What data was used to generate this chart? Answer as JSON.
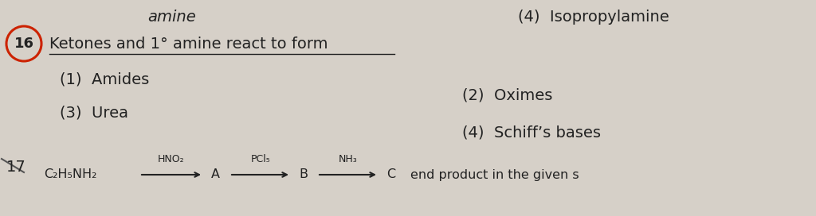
{
  "bg_color": "#d6d0c8",
  "title_num": "16.",
  "title_circle_color": "#cc2200",
  "title_text": "Ketones and 1° amine react to form",
  "top_right_text": "(4)  Isopropylamine",
  "top_right_partial": "amine",
  "opt1": "(1)  Amides",
  "opt2": "(2)  Oximes",
  "opt3": "(3)  Urea",
  "opt4": "(4)  Schiff’s bases",
  "q17_text": "C₂H₅NH₂",
  "q17_arrow1_label": "HNO₂",
  "q17_A": "A",
  "q17_arrow2_label": "PCl₅",
  "q17_B": "B",
  "q17_arrow3_label": "NH₃",
  "q17_C": "C",
  "q17_end": "end product in the given s",
  "q17_num": "17"
}
